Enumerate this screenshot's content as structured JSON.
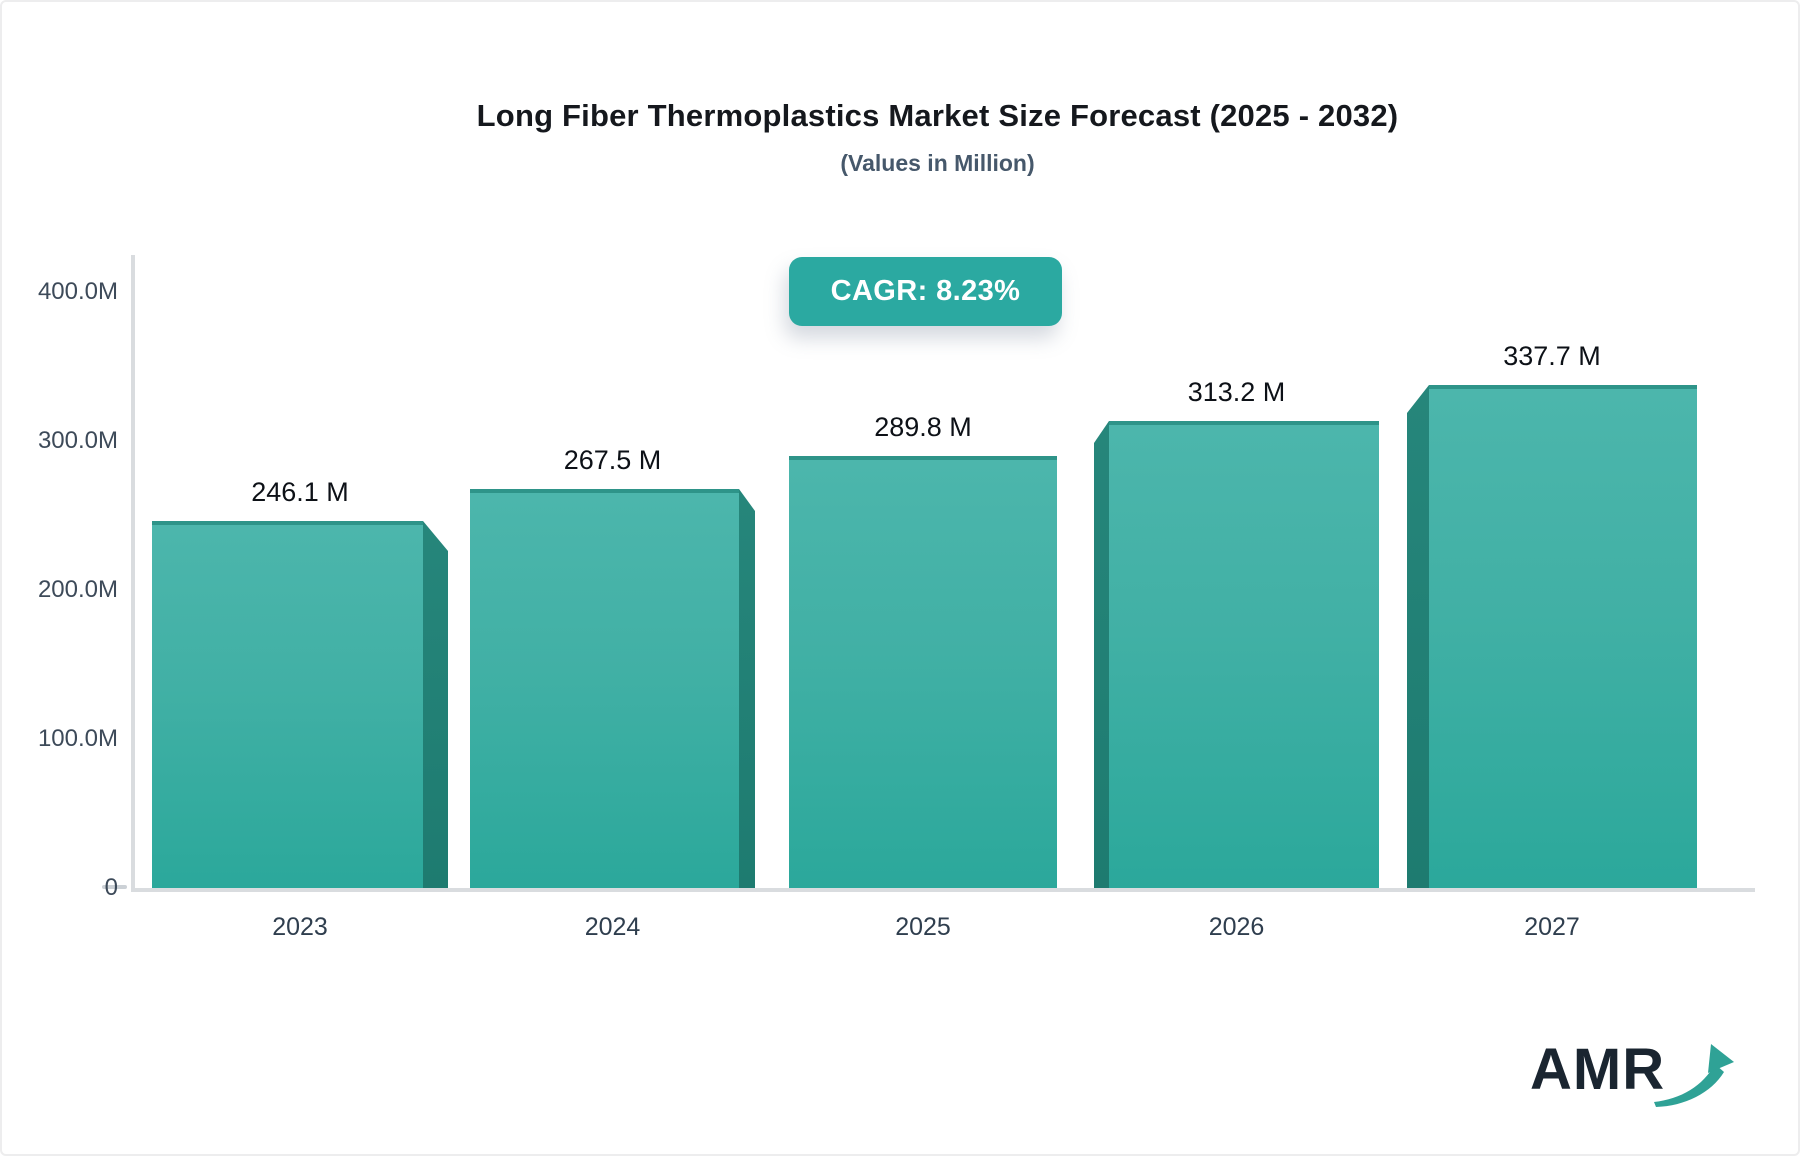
{
  "header": {
    "title": "Long Fiber Thermoplastics Market Size Forecast (2025 - 2032)",
    "subtitle": "(Values in Million)",
    "cagr_label": "CAGR: 8.23%"
  },
  "chart_data": {
    "type": "bar",
    "title": "Long Fiber Thermoplastics Market Size Forecast (2025 - 2032)",
    "subtitle": "(Values in Million)",
    "cagr": "8.23%",
    "unit": "Million",
    "categories": [
      "2023",
      "2024",
      "2025",
      "2026",
      "2027"
    ],
    "values": [
      246.1,
      267.5,
      289.8,
      313.2,
      337.7
    ],
    "value_labels": [
      "246.1 M",
      "267.5 M",
      "289.8 M",
      "313.2 M",
      "337.7 M"
    ],
    "ylim": [
      0,
      400
    ],
    "y_ticks": [
      {
        "label": "400.0M",
        "value": 400
      },
      {
        "label": "300.0M",
        "value": 300
      },
      {
        "label": "200.0M",
        "value": 200
      },
      {
        "label": "100.0M",
        "value": 100
      },
      {
        "label": "0",
        "value": 0
      }
    ],
    "grid": false,
    "legend": "none",
    "colors": {
      "bar_top": "#4cb6ac",
      "bar_bottom": "#2ba89b",
      "bar_side": "#1e7b70",
      "bar_top_edge": "#2e9489",
      "badge_bg": "#2ba9a1",
      "axis_line": "#d9dcdf"
    }
  },
  "footer": {
    "logo_text": "AMR"
  }
}
